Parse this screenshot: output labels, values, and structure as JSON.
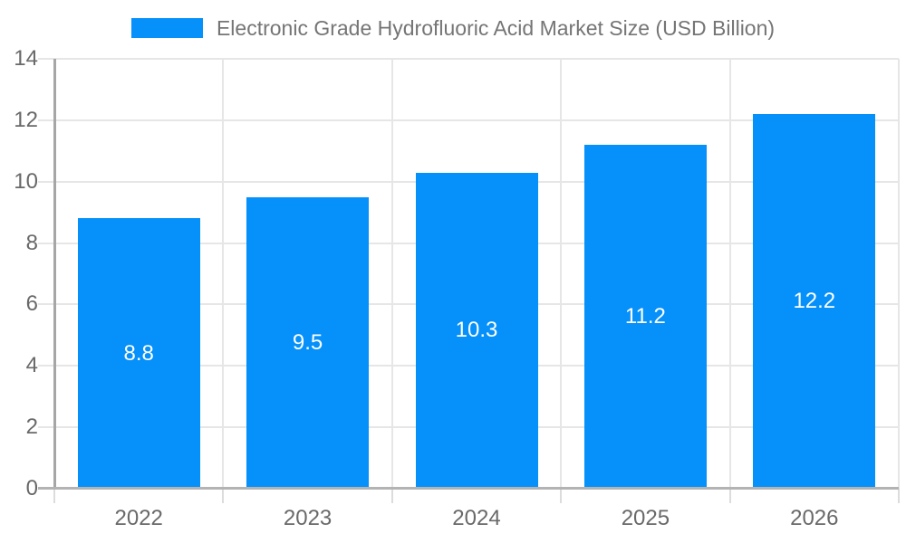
{
  "chart_data": {
    "type": "bar",
    "title": "Electronic Grade Hydrofluoric Acid Market Size (USD Billion)",
    "categories": [
      "2022",
      "2023",
      "2024",
      "2025",
      "2026"
    ],
    "values": [
      8.8,
      9.5,
      10.3,
      11.2,
      12.2
    ],
    "bar_labels": [
      "8.8",
      "9.5",
      "10.3",
      "11.2",
      "12.2"
    ],
    "xlabel": "",
    "ylabel": "",
    "ylim": [
      0,
      14
    ],
    "yticks": [
      0,
      2,
      4,
      6,
      8,
      10,
      12,
      14
    ],
    "grid": true,
    "legend_position": "top-center",
    "colors": {
      "bar": "#0590fa",
      "grid": "#e6e6e6",
      "y_axis_line": "#a6a6a6",
      "baseline": "#b3b3b3",
      "tick": "#dcdcdc",
      "axis_label_text": "#696969",
      "legend_text": "#757575",
      "value_label_text": "#ffffff",
      "background": "#ffffff"
    }
  }
}
